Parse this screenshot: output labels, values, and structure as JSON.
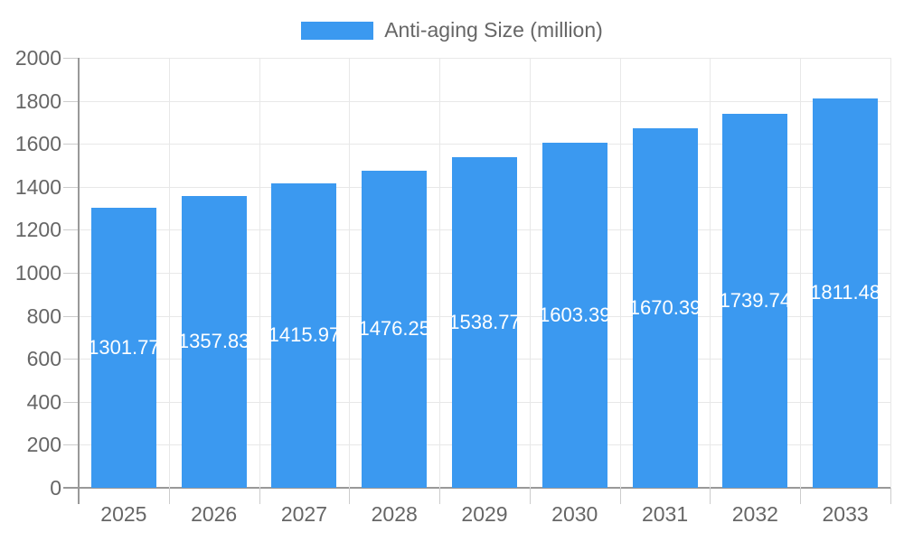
{
  "colors": {
    "bar": "#3b99f0",
    "axis_text": "#666666",
    "grid_line": "#e8e8e8",
    "axis_line": "#999999",
    "tick_mark": "#cccccc",
    "value_label": "#ffffff",
    "background": "#ffffff"
  },
  "legend": {
    "label": "Anti-aging Size (million)",
    "swatch": "blue-rect"
  },
  "chart_data": {
    "type": "bar",
    "title": "",
    "categories": [
      "2025",
      "2026",
      "2027",
      "2028",
      "2029",
      "2030",
      "2031",
      "2032",
      "2033"
    ],
    "series": [
      {
        "name": "Anti-aging Size (million)",
        "values": [
          1301.77,
          1357.83,
          1415.97,
          1476.25,
          1538.77,
          1603.39,
          1670.39,
          1739.74,
          1811.48
        ],
        "value_labels": [
          "1301.77",
          "1357.83",
          "1415.97",
          "1476.25",
          "1538.77",
          "1603.39",
          "1670.39",
          "1739.74",
          "1811.48"
        ]
      }
    ],
    "xlabel": "",
    "ylabel": "",
    "ylim": [
      0,
      2000
    ],
    "ytick_step": 200,
    "yticks": [
      0,
      200,
      400,
      600,
      800,
      1000,
      1200,
      1400,
      1600,
      1800,
      2000
    ],
    "grid": true,
    "legend_position": "top",
    "value_label_position": "inside-center"
  }
}
